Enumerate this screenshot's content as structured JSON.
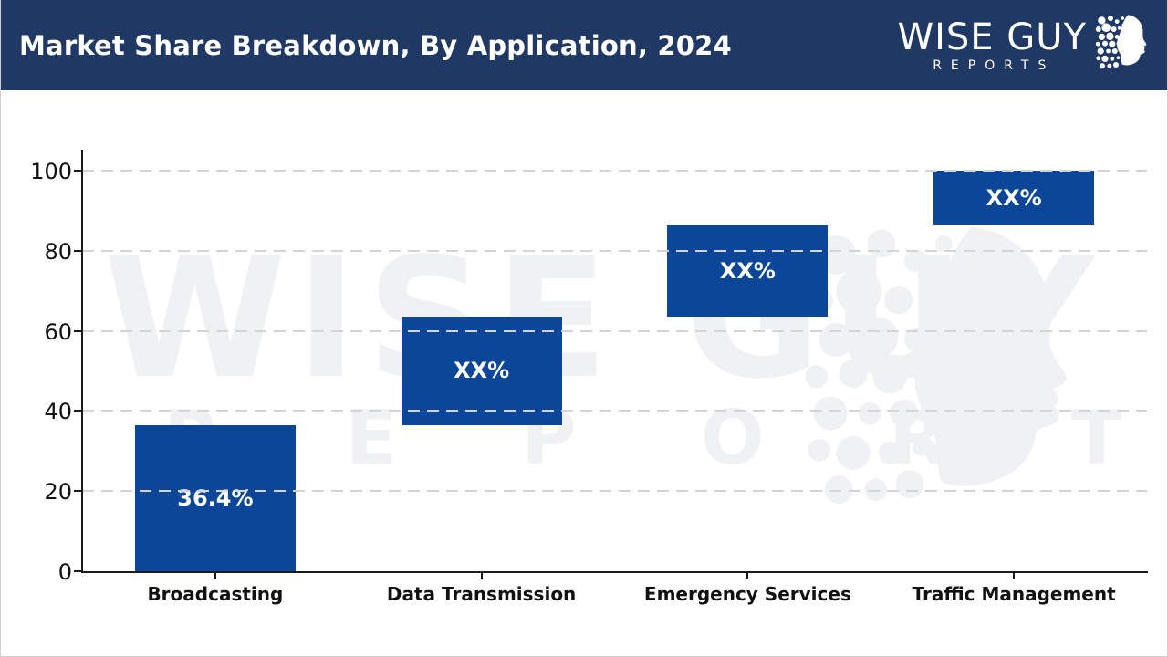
{
  "header": {
    "title": "Market Share Breakdown, By Application, 2024",
    "logo": {
      "name": "WISE GUY",
      "sub": "REPORTS"
    }
  },
  "watermark": {
    "line1": "WISE GUY",
    "line2": "R E P O R T S"
  },
  "chart_data": {
    "type": "bar",
    "subtype": "waterfall",
    "title": "Market Share Breakdown, By Application, 2024",
    "categories": [
      "Broadcasting",
      "Data Transmission",
      "Emergency Services",
      "Traffic Management"
    ],
    "segments": [
      {
        "category": "Broadcasting",
        "start": 0,
        "end": 36.4,
        "label": "36.4%"
      },
      {
        "category": "Data Transmission",
        "start": 36.4,
        "end": 63.6,
        "label": "XX%"
      },
      {
        "category": "Emergency Services",
        "start": 63.6,
        "end": 86.4,
        "label": "XX%"
      },
      {
        "category": "Traffic Management",
        "start": 86.4,
        "end": 100,
        "label": "XX%"
      }
    ],
    "xlabel": "",
    "ylabel": "",
    "ylim": [
      0,
      100
    ],
    "y_ticks": [
      0,
      20,
      40,
      60,
      80,
      100
    ],
    "grid": "horizontal-dashed-over-bars",
    "legend": "none"
  },
  "colors": {
    "header_bg": "#203864",
    "bar": "#0b4699",
    "bar_label": "#ffffff",
    "grid": "#d4d4d4",
    "axis": "#1a1a1a",
    "watermark": "#f0f1f3"
  }
}
